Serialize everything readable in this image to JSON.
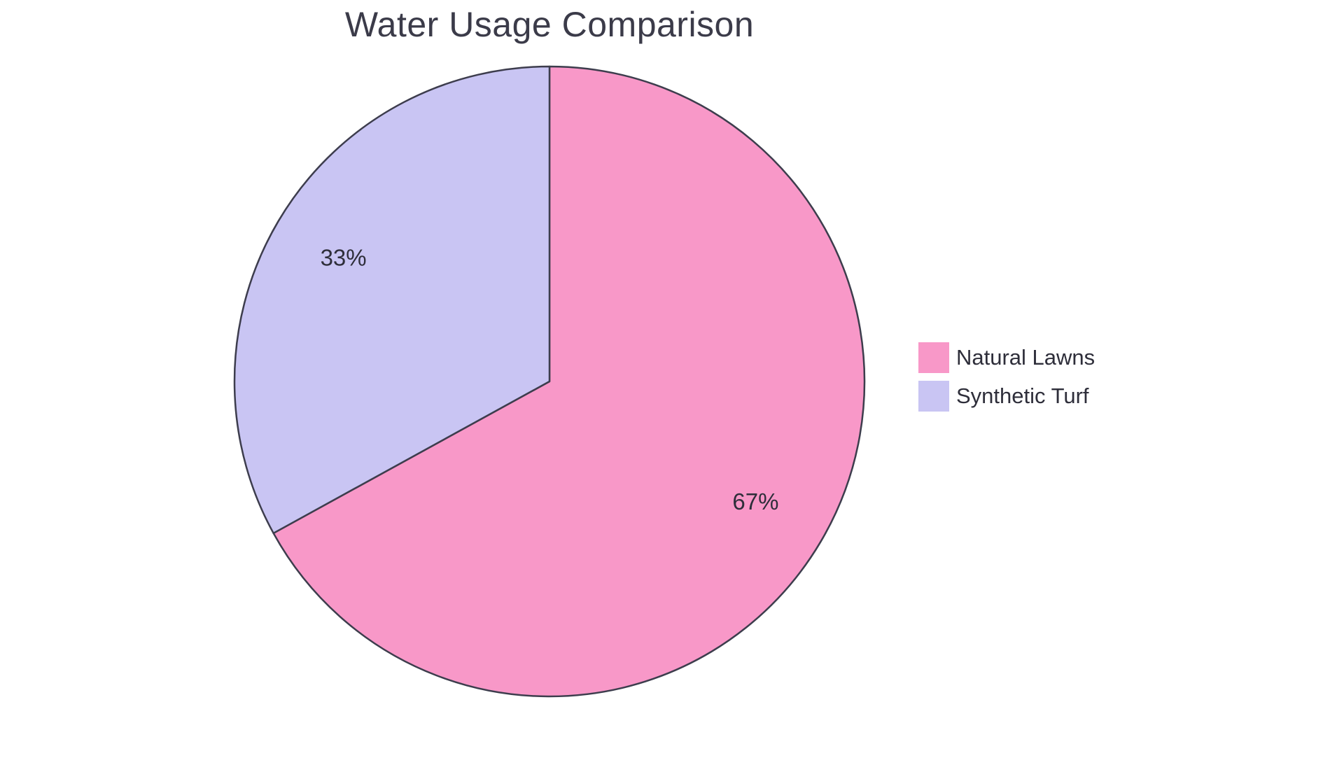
{
  "chart_data": {
    "type": "pie",
    "title": "Water Usage Comparison",
    "labels": [
      "Natural Lawns",
      "Synthetic Turf"
    ],
    "values": [
      67,
      33
    ],
    "slice_labels": [
      "67%",
      "33%"
    ],
    "colors": [
      "#F898C8",
      "#C9C5F3"
    ],
    "stroke_color": "#3D3D4D",
    "text_color": "#2E2E3A",
    "legend_position": "right",
    "start_angle_deg": -90,
    "direction": "clockwise"
  },
  "legend": {
    "items": [
      {
        "label": "Natural Lawns"
      },
      {
        "label": "Synthetic Turf"
      }
    ]
  }
}
